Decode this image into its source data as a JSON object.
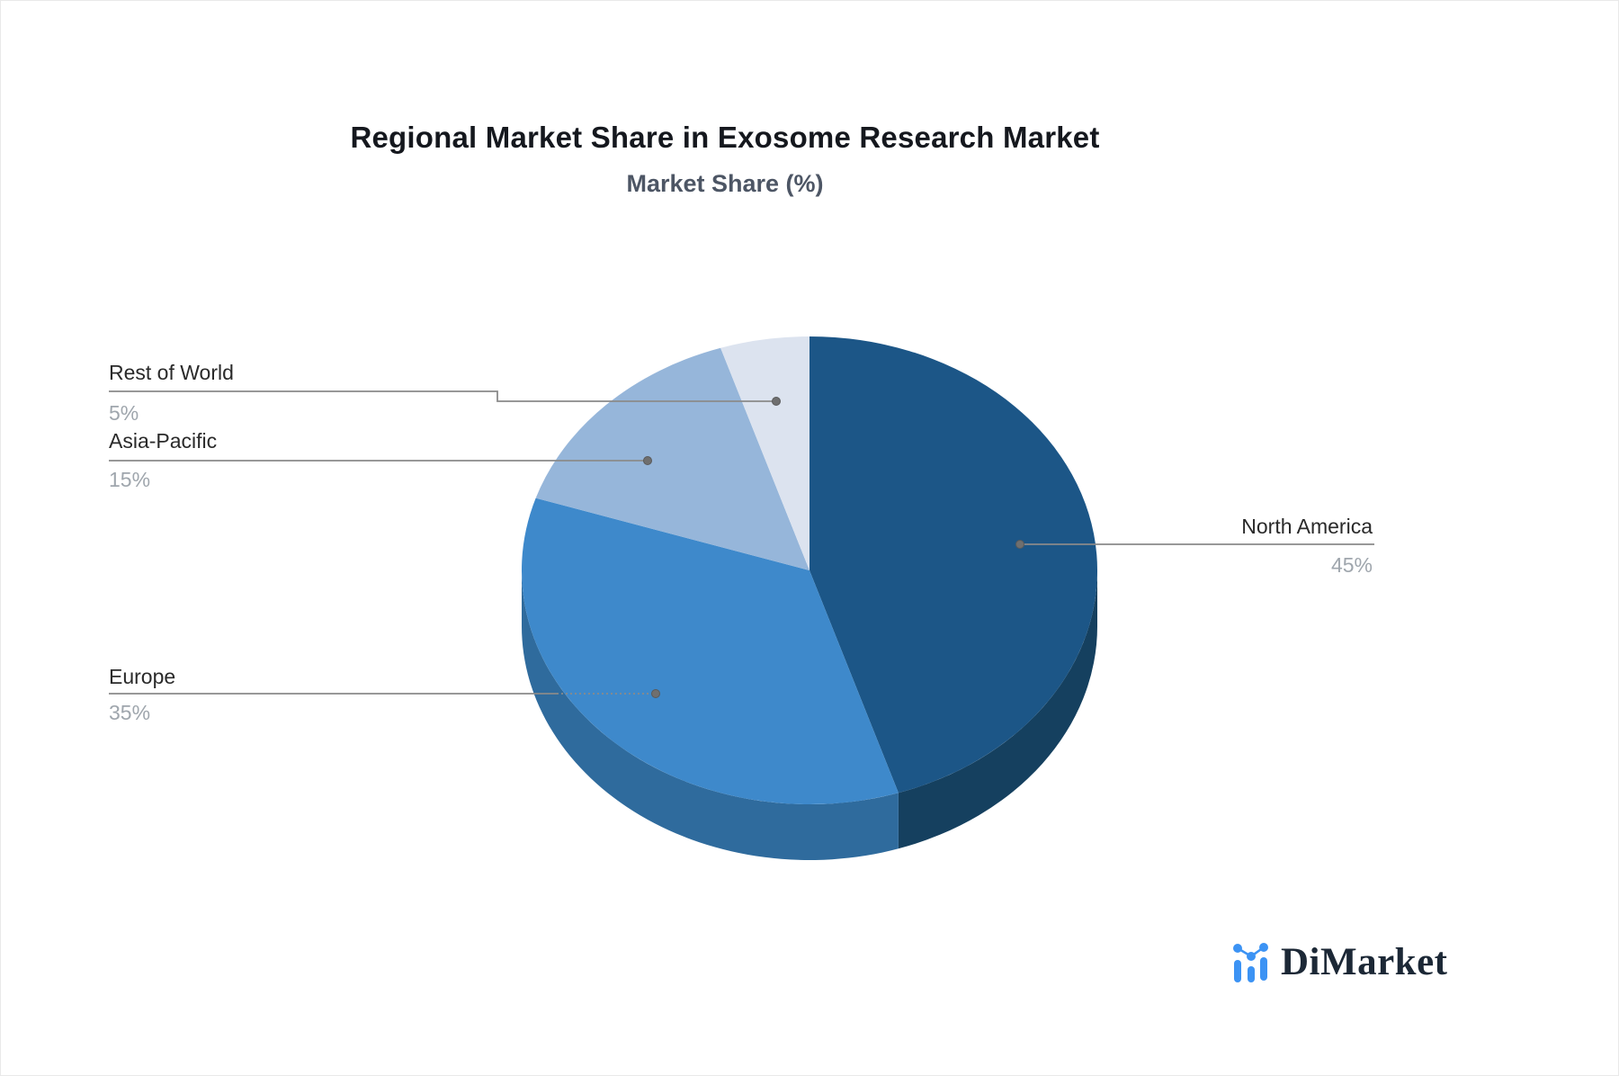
{
  "title": "Regional Market Share in Exosome Research Market",
  "subtitle": "Market Share (%)",
  "brand": {
    "name": "DiMarket",
    "icon": "bar-line-chart-icon",
    "icon_color": "#3c93f4",
    "text_color": "#1c2836"
  },
  "chart_data": {
    "type": "pie",
    "style": "3d",
    "title": "Regional Market Share in Exosome Research Market",
    "subtitle": "Market Share (%)",
    "unit": "percent",
    "start_angle_deg": 0,
    "direction": "clockwise",
    "legend": "none",
    "labels_position": "outside-with-connectors",
    "slices": [
      {
        "label": "North America",
        "value": 45,
        "pct_label": "45%",
        "color": "#1C5687",
        "side_color": "#15405F"
      },
      {
        "label": "Europe",
        "value": 35,
        "pct_label": "35%",
        "color": "#3E89CB",
        "side_color": "#2F6B9D"
      },
      {
        "label": "Asia-Pacific",
        "value": 15,
        "pct_label": "15%",
        "color": "#96B6DA",
        "side_color": "#6E93BB"
      },
      {
        "label": "Rest of World",
        "value": 5,
        "pct_label": "5%",
        "color": "#DCE3EF",
        "side_color": "#B9C4D6"
      }
    ],
    "connector_color": "#8a8a8a",
    "connector_dot_color": "#6f6f6f"
  }
}
